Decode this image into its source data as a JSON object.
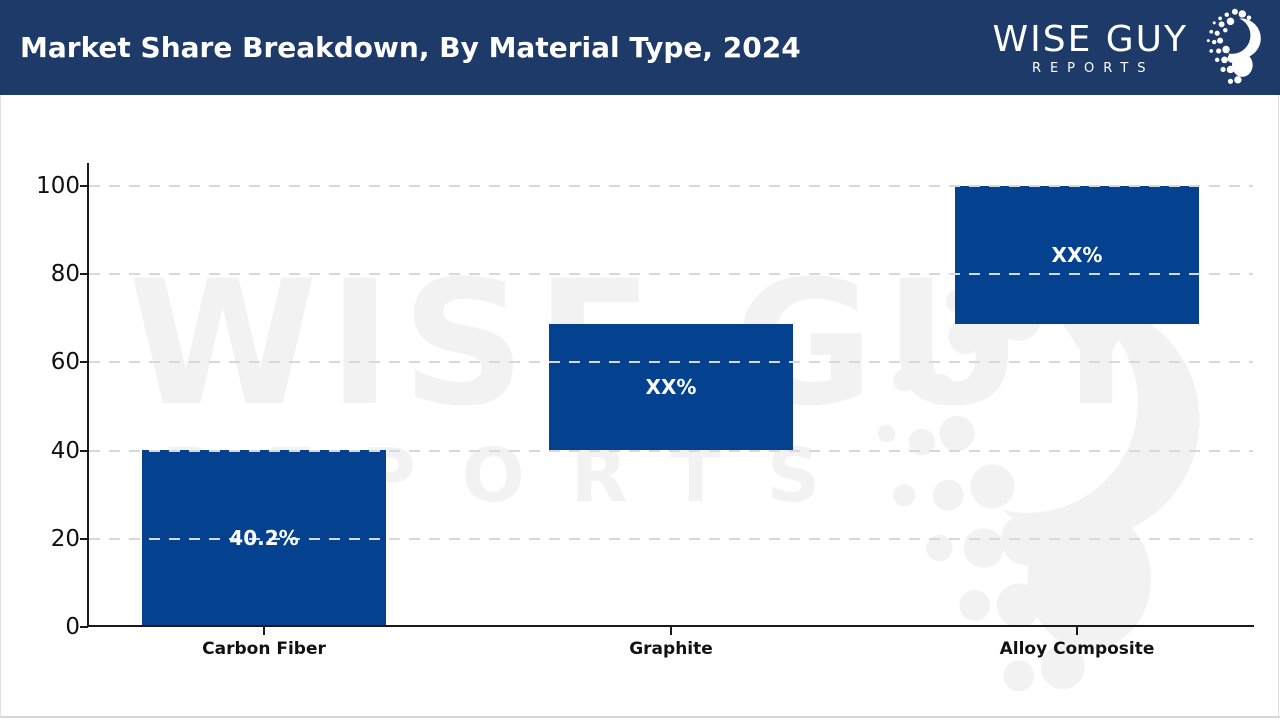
{
  "header": {
    "title": "Market Share Breakdown, By Material Type, 2024",
    "logo": {
      "line1": "WISE GUY",
      "line2": "REPORTS"
    }
  },
  "watermark": {
    "line1": "WISE GUY",
    "line2": "REPORTS"
  },
  "colors": {
    "header_bg": "#1E3A68",
    "bar": "#04418F",
    "axis": "#1a1a1a",
    "gridline": "#d8d8d8",
    "watermark": "#f2f2f2",
    "bar_label": "#ffffff"
  },
  "chart_data": {
    "type": "bar",
    "subtype": "floating-stacked-segments",
    "title": "Market Share Breakdown, By Material Type, 2024",
    "categories": [
      "Carbon Fiber",
      "Graphite",
      "Alloy Composite"
    ],
    "segments": [
      {
        "category": "Carbon Fiber",
        "from": 0,
        "to": 40.2,
        "value": 40.2,
        "label": "40.2%"
      },
      {
        "category": "Graphite",
        "from": 40.2,
        "to": 68.7,
        "value": 28.5,
        "label": "XX%"
      },
      {
        "category": "Alloy Composite",
        "from": 68.7,
        "to": 100,
        "value": 31.3,
        "label": "XX%"
      }
    ],
    "xlabel": "",
    "ylabel": "",
    "ylim": [
      0,
      100
    ],
    "yticks": [
      0,
      20,
      40,
      60,
      80,
      100
    ],
    "grid": "horizontal-dashed",
    "legend": "none",
    "bar_color": "#04418F",
    "label_color": "#ffffff"
  }
}
